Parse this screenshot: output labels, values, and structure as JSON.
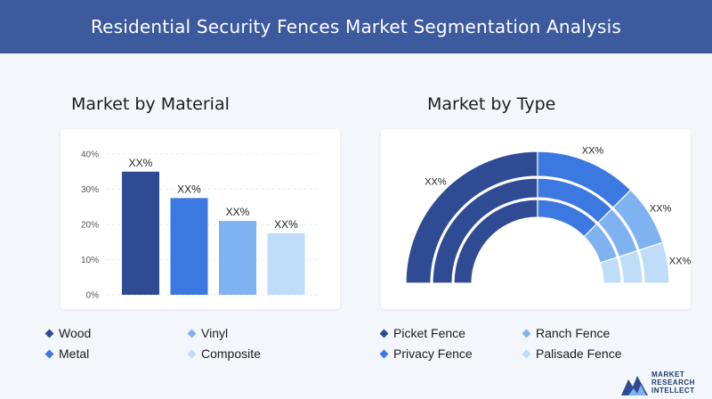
{
  "header": {
    "title": "Residential Security Fences Market Segmentation Analysis"
  },
  "left_section": {
    "title": "Market by Material"
  },
  "right_section": {
    "title": "Market by Type"
  },
  "chart_data": [
    {
      "type": "bar",
      "title": "Market by Material",
      "categories": [
        "Wood",
        "Metal",
        "Vinyl",
        "Composite"
      ],
      "values": [
        35,
        27.5,
        21,
        17.5
      ],
      "data_labels": [
        "XX%",
        "XX%",
        "XX%",
        "XX%"
      ],
      "y_ticks": [
        "0%",
        "10%",
        "20%",
        "30%",
        "40%"
      ],
      "ylim": [
        0,
        40
      ],
      "grid": true,
      "colors": [
        "#2f4b94",
        "#3b78e0",
        "#7fb2f0",
        "#bfdcf8"
      ],
      "legend": [
        {
          "label": "Wood",
          "color": "#2f4b94"
        },
        {
          "label": "Vinyl",
          "color": "#7fb2f0"
        },
        {
          "label": "Metal",
          "color": "#3b78e0"
        },
        {
          "label": "Composite",
          "color": "#bfdcf8"
        }
      ],
      "legend_position": "bottom"
    },
    {
      "type": "pie",
      "variant": "half-donut",
      "title": "Market by Type",
      "categories": [
        "Picket Fence",
        "Privacy Fence",
        "Ranch Fence",
        "Palisade Fence"
      ],
      "values": [
        50,
        25,
        15,
        10
      ],
      "data_labels": [
        "XX%",
        "XX%",
        "XX%",
        "XX%"
      ],
      "colors": [
        "#2f4b94",
        "#3b78e0",
        "#7fb2f0",
        "#bfdcf8"
      ],
      "legend": [
        {
          "label": "Picket Fence",
          "color": "#2f4b94"
        },
        {
          "label": "Ranch Fence",
          "color": "#7fb2f0"
        },
        {
          "label": "Privacy Fence",
          "color": "#3b78e0"
        },
        {
          "label": "Palisade Fence",
          "color": "#bfdcf8"
        }
      ],
      "legend_position": "bottom"
    }
  ],
  "logo": {
    "line1": "MARKET",
    "line2": "RESEARCH",
    "line3": "INTELLECT"
  }
}
